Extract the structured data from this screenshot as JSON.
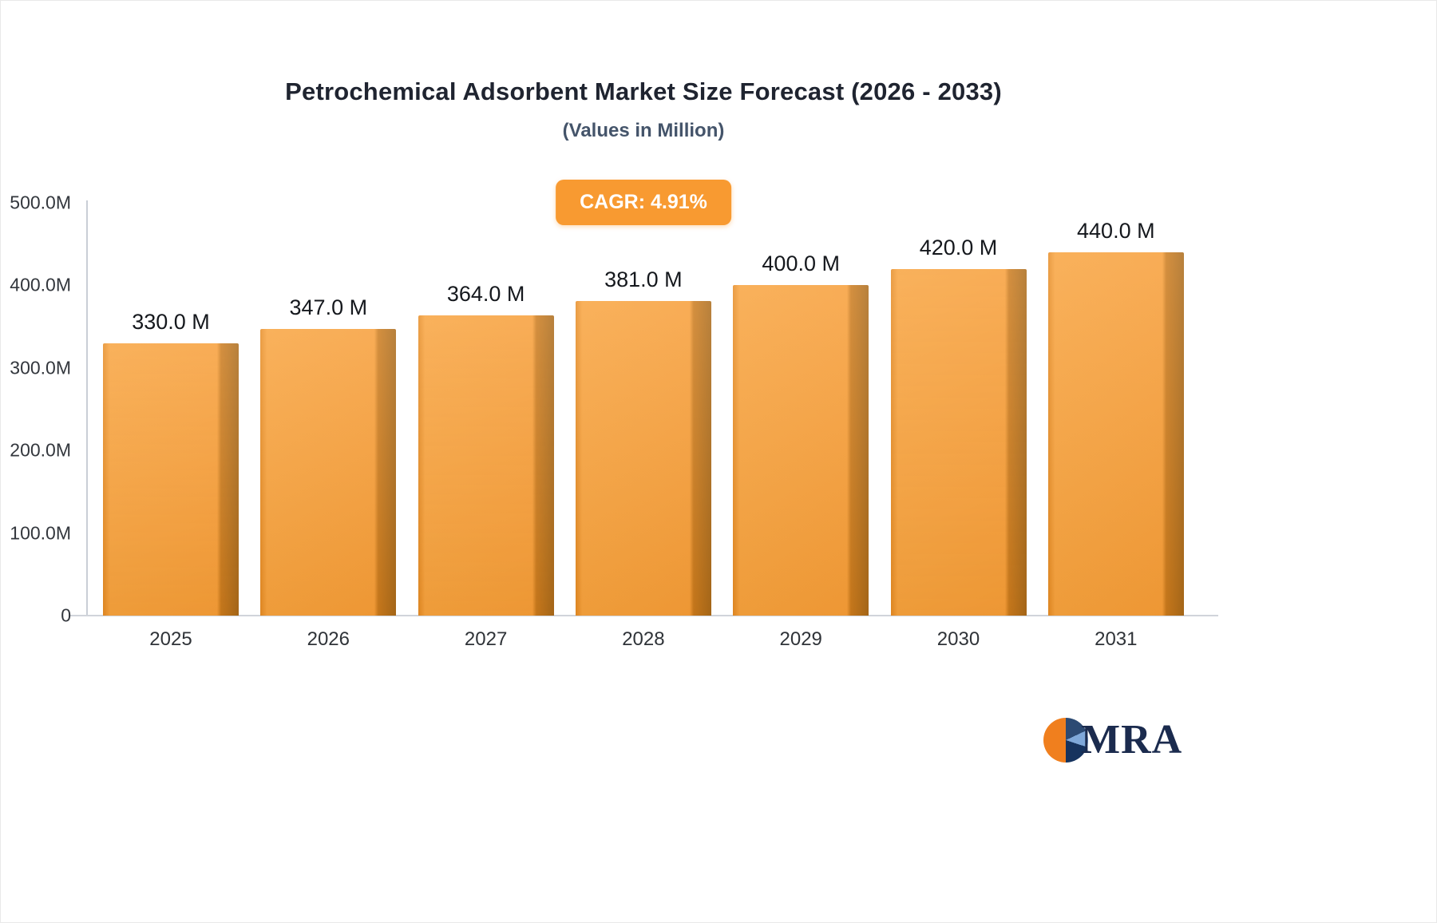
{
  "header": {
    "title": "Petrochemical Adsorbent Market Size Forecast (2026 - 2033)",
    "subtitle": "(Values in Million)",
    "cagr_badge": "CAGR: 4.91%"
  },
  "footer": {
    "logo_text": "MRA"
  },
  "colors": {
    "bar_main": "#f79d36",
    "bar_shadow": "#aa6918",
    "badge_bg": "#f89a31",
    "title_color": "#1f2430",
    "subtitle_color": "#44546a",
    "logo_navy": "#1b2b4e",
    "logo_orange": "#f07f1e",
    "axis_color": "#c9ced6"
  },
  "chart_data": {
    "type": "bar",
    "title": "Petrochemical Adsorbent Market Size Forecast (2026 - 2033)",
    "subtitle": "(Values in Million)",
    "categories": [
      "2025",
      "2026",
      "2027",
      "2028",
      "2029",
      "2030",
      "2031"
    ],
    "values": [
      330.0,
      347.0,
      364.0,
      381.0,
      400.0,
      420.0,
      440.0
    ],
    "value_labels": [
      "330.0 M",
      "347.0 M",
      "364.0 M",
      "381.0 M",
      "400.0 M",
      "420.0 M",
      "440.0 M"
    ],
    "xlabel": "",
    "ylabel": "",
    "ylim": [
      0,
      500
    ],
    "y_tick_values": [
      500,
      400,
      300,
      200,
      100,
      0
    ],
    "y_tick_labels": [
      "500.0M",
      "400.0M",
      "300.0M",
      "200.0M",
      "100.0M",
      "0"
    ],
    "unit": "Million",
    "annotation": "CAGR: 4.91%",
    "legend_position": "none",
    "grid": false
  }
}
